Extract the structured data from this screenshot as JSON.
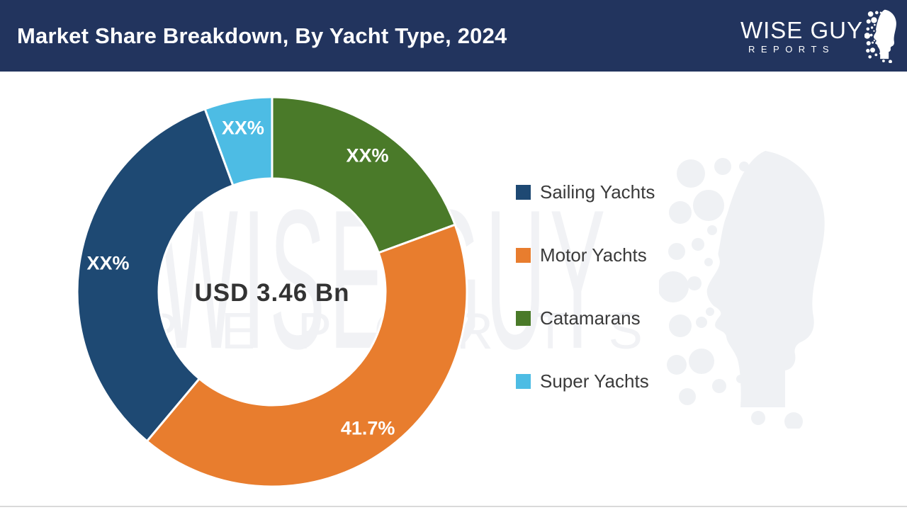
{
  "header": {
    "title": "Market Share Breakdown, By Yacht Type, 2024",
    "background_color": "#22345E",
    "logo": {
      "primary": "WISE GUY",
      "secondary": "REPORTS"
    }
  },
  "chart_data": {
    "type": "pie",
    "subtype": "donut",
    "title": "Market Share Breakdown, By Yacht Type, 2024",
    "center_label": "USD 3.46 Bn",
    "start_angle_deg": 0,
    "direction": "clockwise",
    "inner_radius_ratio": 0.58,
    "label_color": "#ffffff",
    "segments": [
      {
        "name": "Catamarans",
        "value_pct": 19.4,
        "display_label": "XX%",
        "color": "#4A7A29"
      },
      {
        "name": "Motor Yachts",
        "value_pct": 41.7,
        "display_label": "41.7%",
        "color": "#E87D2E"
      },
      {
        "name": "Sailing Yachts",
        "value_pct": 33.3,
        "display_label": "XX%",
        "color": "#1E4973"
      },
      {
        "name": "Super Yachts",
        "value_pct": 5.6,
        "display_label": "XX%",
        "color": "#4DBCE4"
      }
    ],
    "legend": {
      "position": "right",
      "items": [
        {
          "label": "Sailing Yachts",
          "color": "#1E4973"
        },
        {
          "label": "Motor Yachts",
          "color": "#E87D2E"
        },
        {
          "label": "Catamarans",
          "color": "#4A7A29"
        },
        {
          "label": "Super Yachts",
          "color": "#4DBCE4"
        }
      ]
    }
  },
  "watermark": {
    "line1": "WISE GUY",
    "line2": "REPORTS"
  }
}
